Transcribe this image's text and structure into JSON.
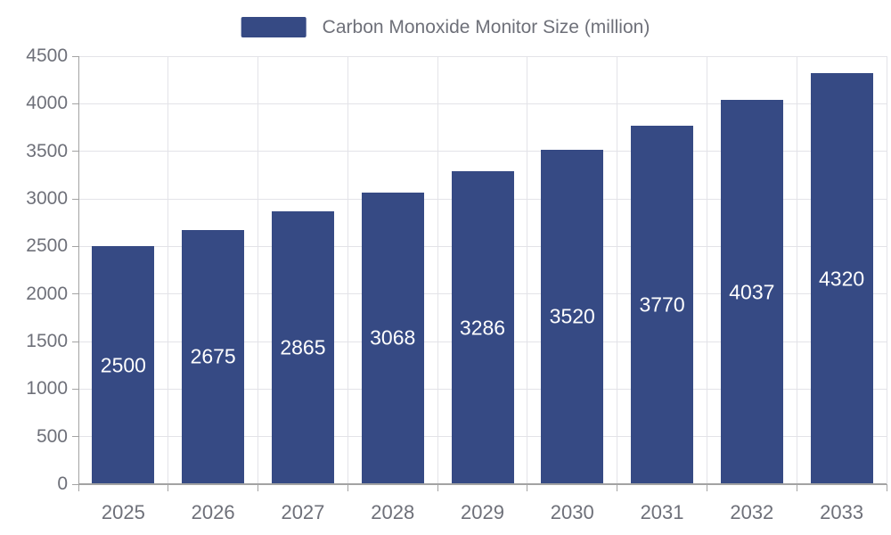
{
  "legend": {
    "label": "Carbon Monoxide Monitor Size (million)"
  },
  "colors": {
    "bar": "#364A84",
    "bar_label": "#FFFFFF",
    "legend_text": "#6E7079",
    "axis_label": "#6E7079",
    "grid_line": "#E3E3E8",
    "axis_line": "#A3A3A3",
    "background": "#FFFFFF"
  },
  "chart_data": {
    "type": "bar",
    "title": "Carbon Monoxide Monitor Size (million)",
    "series_name": "Carbon Monoxide Monitor Size (million)",
    "categories": [
      "2025",
      "2026",
      "2027",
      "2028",
      "2029",
      "2030",
      "2031",
      "2032",
      "2033"
    ],
    "values": [
      2500,
      2675,
      2865,
      3068,
      3286,
      3520,
      3770,
      4037,
      4320
    ],
    "bar_labels": [
      "2500",
      "2675",
      "2865",
      "3068",
      "3286",
      "3520",
      "3770",
      "4037",
      "4320"
    ],
    "xlabel": "",
    "ylabel": "",
    "ylim": [
      0,
      4500
    ],
    "ytick_step": 500,
    "ytick_labels": [
      "0",
      "500",
      "1000",
      "1500",
      "2000",
      "2500",
      "3000",
      "3500",
      "4000",
      "4500"
    ],
    "grid": true,
    "legend_position": "top-center",
    "bar_label_position": "inside-middle"
  }
}
